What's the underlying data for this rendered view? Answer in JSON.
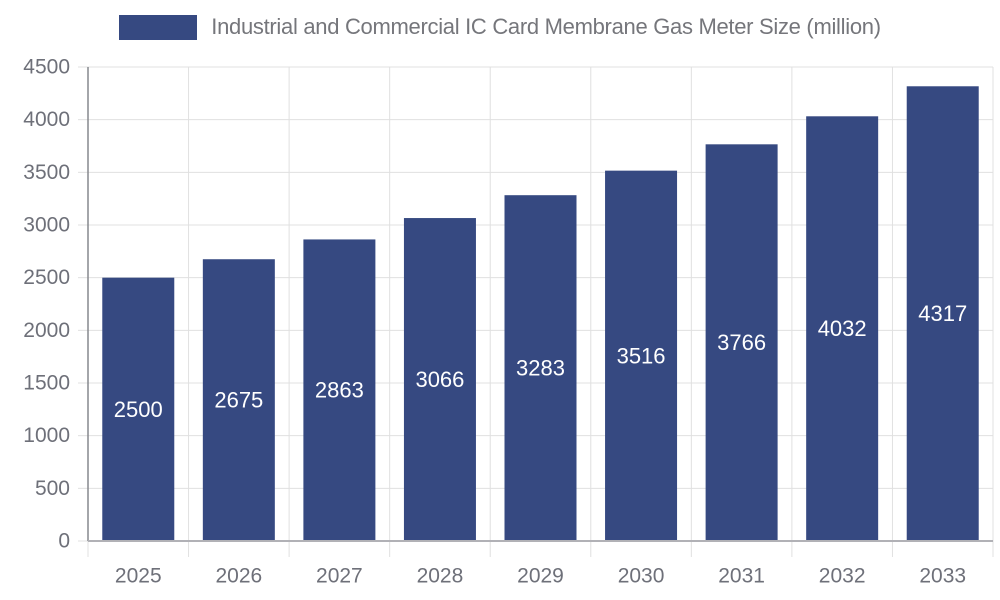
{
  "legend": {
    "label": "Industrial and Commercial IC Card Membrane Gas Meter Size (million)"
  },
  "chart_data": {
    "type": "bar",
    "title": "Industrial and Commercial IC Card Membrane Gas Meter Size (million)",
    "categories": [
      "2025",
      "2026",
      "2027",
      "2028",
      "2029",
      "2030",
      "2031",
      "2032",
      "2033"
    ],
    "values": [
      2500,
      2675,
      2863,
      3066,
      3283,
      3516,
      3766,
      4032,
      4317
    ],
    "bar_labels": [
      "2500",
      "2675",
      "2863",
      "3066",
      "3283",
      "3516",
      "3766",
      "4032",
      "4317"
    ],
    "xlabel": "",
    "ylabel": "",
    "ylim": [
      0,
      4500
    ],
    "yticks": [
      0,
      500,
      1000,
      1500,
      2000,
      2500,
      3000,
      3500,
      4000,
      4500
    ],
    "grid": true,
    "legend_position": "top",
    "colors": {
      "bar": "#364981",
      "bar_label": "#ffffff",
      "axis_label": "#6e7079",
      "title": "#75767b",
      "grid": "#e0e0e0",
      "y_axis_line": "#86888d",
      "x_axis_line": "#b1b1b6"
    }
  }
}
